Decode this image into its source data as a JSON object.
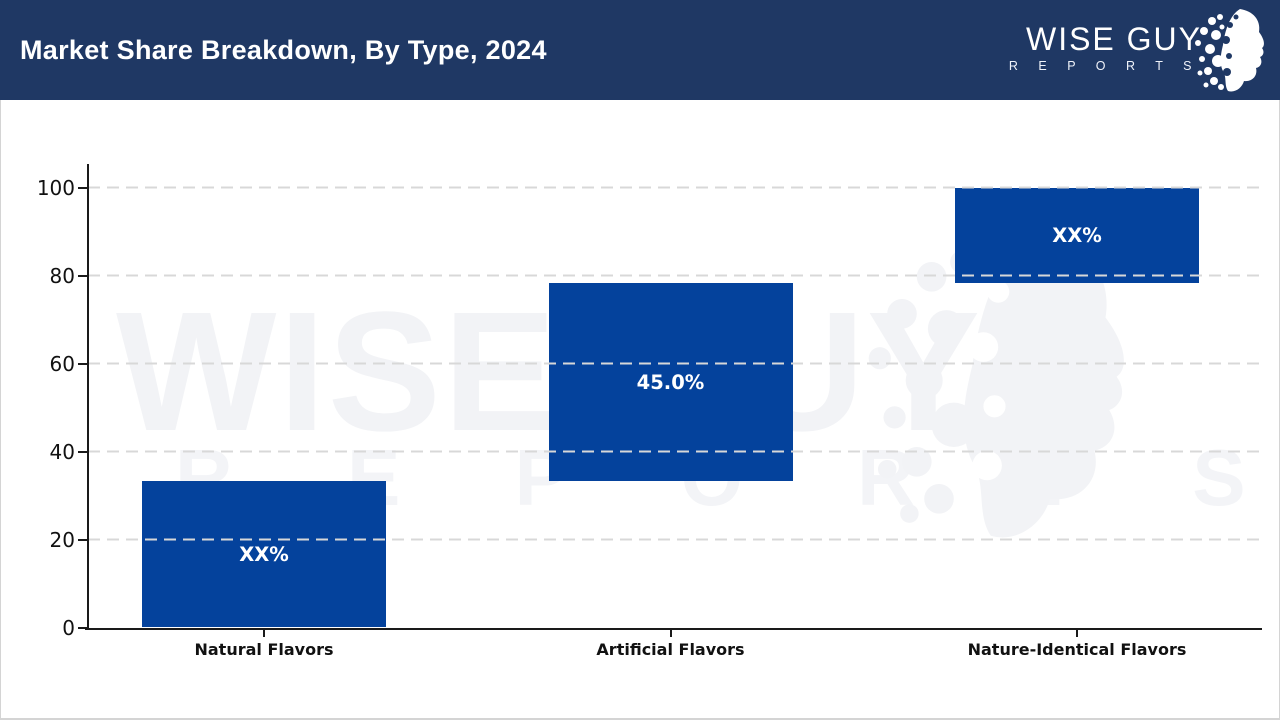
{
  "header": {
    "title": "Market Share Breakdown, By Type, 2024",
    "bg_color": "#1f3864",
    "logo": {
      "line1": "WISE GUY",
      "line2": "R E P O R T S",
      "face_icon": "dotted-head-profile"
    }
  },
  "watermark": {
    "line1": "WISE GUY",
    "line2": "R E P O R T S",
    "face_icon": "dotted-head-profile",
    "color": "#f2f3f6"
  },
  "chart_data": {
    "type": "bar",
    "subtype": "floating-waterfall",
    "title": "Market Share Breakdown, By Type, 2024",
    "xlabel": "",
    "ylabel": "",
    "categories": [
      "Natural Flavors",
      "Artificial Flavors",
      "Nature-Identical Flavors"
    ],
    "series": [
      {
        "name": "Market share (%)",
        "segments": [
          {
            "category": "Natural Flavors",
            "start": 0,
            "value": 33.2,
            "label": "XX%"
          },
          {
            "category": "Artificial Flavors",
            "start": 33.2,
            "value": 45.0,
            "label": "45.0%"
          },
          {
            "category": "Nature-Identical Flavors",
            "start": 78.2,
            "value": 21.8,
            "label": "XX%"
          }
        ]
      }
    ],
    "yticks": [
      0,
      20,
      40,
      60,
      80,
      100
    ],
    "ylim": [
      0,
      105
    ],
    "grid": "horizontal-dashed-above-bars",
    "grid_color": "#d8d8d8",
    "bar_color": "#04429c",
    "bar_label_color": "#ffffff",
    "axis_color": "#1a1a1a",
    "legend": "none"
  }
}
